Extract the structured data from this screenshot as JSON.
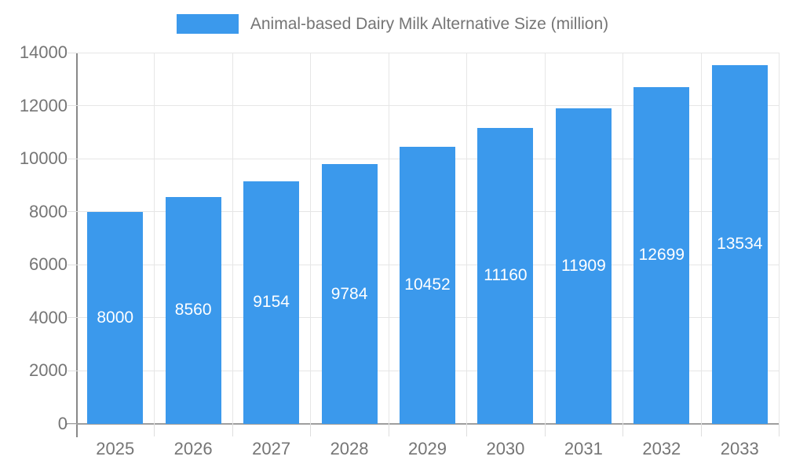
{
  "legend": {
    "label": "Animal-based Dairy Milk Alternative Size (million)"
  },
  "chart_data": {
    "type": "bar",
    "title": "Animal-based Dairy Milk Alternative Size (million)",
    "categories": [
      "2025",
      "2026",
      "2027",
      "2028",
      "2029",
      "2030",
      "2031",
      "2032",
      "2033"
    ],
    "values": [
      8000,
      8560,
      9154,
      9784,
      10452,
      11160,
      11909,
      12699,
      13534
    ],
    "xlabel": "",
    "ylabel": "",
    "ylim": [
      0,
      14000
    ],
    "yticks": [
      0,
      2000,
      4000,
      6000,
      8000,
      10000,
      12000,
      14000
    ],
    "grid": true,
    "legend_position": "top",
    "bar_color": "#3B99EC",
    "value_label_color": "#ffffff",
    "axis_text_color": "#757575",
    "gridline_color": "#e6e6e6"
  }
}
